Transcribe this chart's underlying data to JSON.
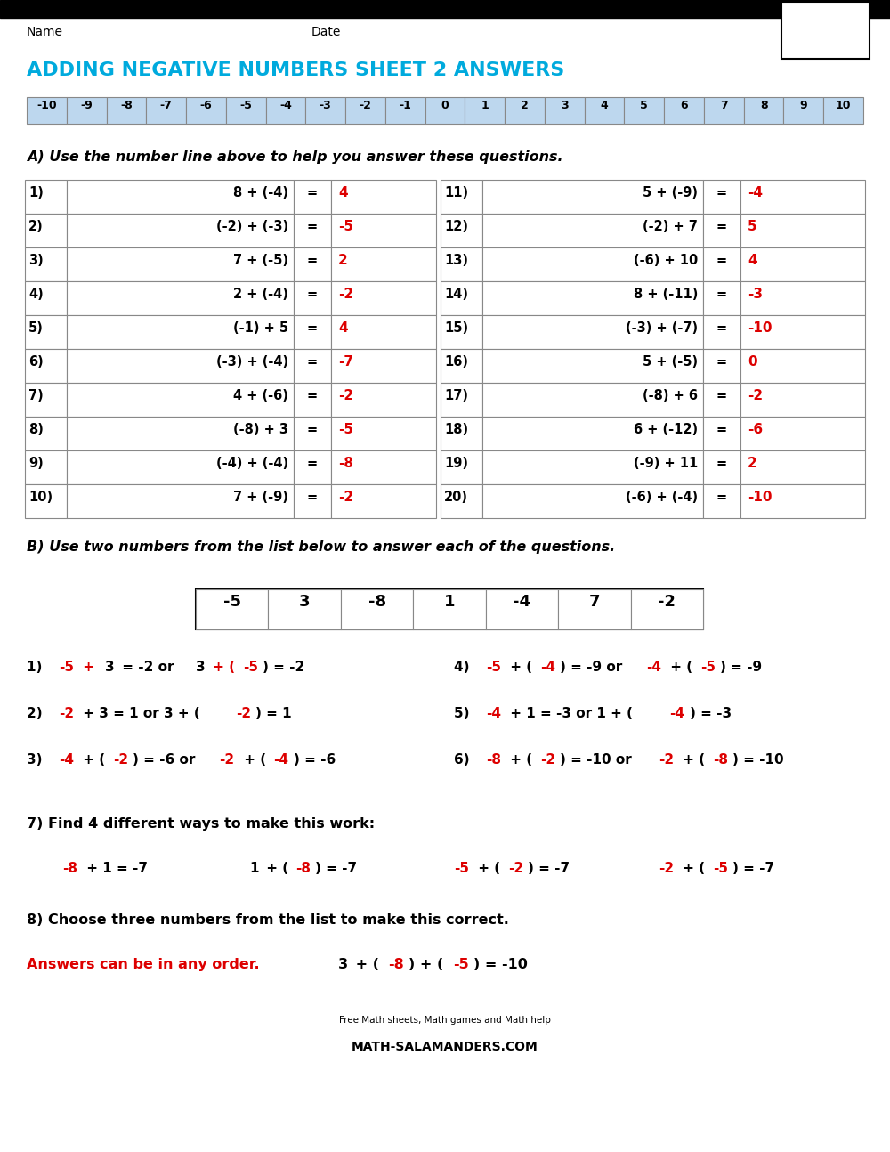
{
  "title": "ADDING NEGATIVE NUMBERS SHEET 2 ANSWERS",
  "title_color": "#00AADD",
  "bg_color": "#FFFFFF",
  "name_label": "Name",
  "date_label": "Date",
  "number_line": [
    -10,
    -9,
    -8,
    -7,
    -6,
    -5,
    -4,
    -3,
    -2,
    -1,
    0,
    1,
    2,
    3,
    4,
    5,
    6,
    7,
    8,
    9,
    10
  ],
  "number_line_bg": "#BDD7EE",
  "section_a_title": "A) Use the number line above to help you answer these questions.",
  "section_b_title": "B) Use two numbers from the list below to answer each of the questions.",
  "table_a_left": [
    [
      "1)",
      "8 + (-4)",
      "=",
      "4"
    ],
    [
      "2)",
      "(-2) + (-3)",
      "=",
      "-5"
    ],
    [
      "3)",
      "7 + (-5)",
      "=",
      "2"
    ],
    [
      "4)",
      "2 + (-4)",
      "=",
      "-2"
    ],
    [
      "5)",
      "(-1) + 5",
      "=",
      "4"
    ],
    [
      "6)",
      "(-3) + (-4)",
      "=",
      "-7"
    ],
    [
      "7)",
      "4 + (-6)",
      "=",
      "-2"
    ],
    [
      "8)",
      "(-8) + 3",
      "=",
      "-5"
    ],
    [
      "9)",
      "(-4) + (-4)",
      "=",
      "-8"
    ],
    [
      "10)",
      "7 + (-9)",
      "=",
      "-2"
    ]
  ],
  "table_a_right": [
    [
      "11)",
      "5 + (-9)",
      "=",
      "-4"
    ],
    [
      "12)",
      "(-2) + 7",
      "=",
      "5"
    ],
    [
      "13)",
      "(-6) + 10",
      "=",
      "4"
    ],
    [
      "14)",
      "8 + (-11)",
      "=",
      "-3"
    ],
    [
      "15)",
      "(-3) + (-7)",
      "=",
      "-10"
    ],
    [
      "16)",
      "5 + (-5)",
      "=",
      "0"
    ],
    [
      "17)",
      "(-8) + 6",
      "=",
      "-2"
    ],
    [
      "18)",
      "6 + (-12)",
      "=",
      "-6"
    ],
    [
      "19)",
      "(-9) + 11",
      "=",
      "2"
    ],
    [
      "20)",
      "(-6) + (-4)",
      "=",
      "-10"
    ]
  ],
  "number_list": [
    "-5",
    "3",
    "-8",
    "1",
    "-4",
    "7",
    "-2"
  ],
  "section_b_answers": [
    "1)   -5 + 3 = -2 or 3 + (-5) = -2",
    "2)   -2 + 3 = 1 or 3 + (-2) = 1",
    "3)   -4 + (-2) = -6 or -2 + (-4) = -6"
  ],
  "section_b_answers_right": [
    "4)   -5 + (-4) = -9 or -4 + (-5) = -9",
    "5)   -4 + 1 = -3 or 1 + (-4) = -3",
    "6)   -8 + (-2) = -10 or -2 + (-8) = -10"
  ],
  "q7_label": "7) Find 4 different ways to make this work:",
  "q7_answers": [
    "-8 + 1 = -7",
    "1 + (-8) = -7",
    "-5 + (-2) = -7",
    "-2 + (-5) = -7"
  ],
  "q8_label": "8) Choose three numbers from the list to make this correct.",
  "q8_answer_text": "Answers can be in any order.",
  "q8_answer_eq": "3 + (-8) + (-5) = -10",
  "red_color": "#DD0000",
  "black_color": "#000000",
  "table_border": "#888888"
}
